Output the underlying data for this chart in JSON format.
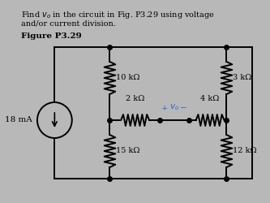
{
  "title_line1": "Find $v_o$ in the circuit in Fig. P3.29 using voltage",
  "title_line2": "and/or current division.",
  "figure_label": "Figure P3.29",
  "bg_color": "#b8b8b8",
  "text_color": "#000000",
  "current_source_label": "18 mA",
  "R_top_left": "10 kΩ",
  "R_bottom_left": "15 kΩ",
  "R_top_right": "3 kΩ",
  "R_bottom_right": "12 kΩ",
  "R_mid_left": "2 kΩ",
  "R_mid_right": "4 kΩ",
  "vo_plus": "+",
  "vo_italic": "$v_o$",
  "vo_minus": "−"
}
